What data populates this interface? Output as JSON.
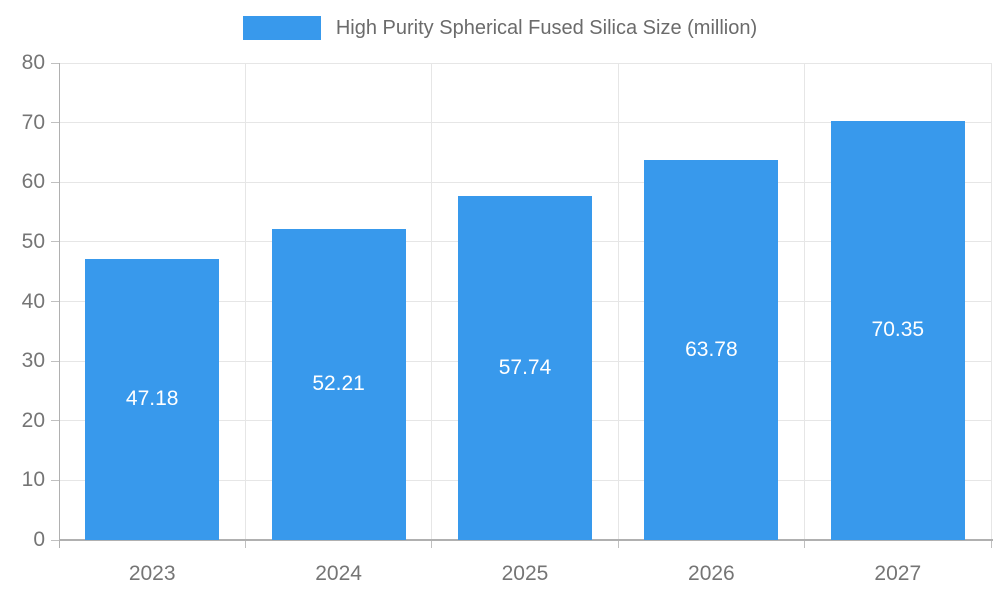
{
  "chart_data": {
    "type": "bar",
    "title": "High Purity Spherical Fused Silica Size (million)",
    "categories": [
      "2023",
      "2024",
      "2025",
      "2026",
      "2027"
    ],
    "values": [
      47.18,
      52.21,
      57.74,
      63.78,
      70.35
    ],
    "value_labels": [
      "47.18",
      "52.21",
      "57.74",
      "63.78",
      "70.35"
    ],
    "xlabel": "",
    "ylabel": "",
    "ylim": [
      0,
      80
    ],
    "yticks": [
      0,
      10,
      20,
      30,
      40,
      50,
      60,
      70,
      80
    ],
    "grid": true,
    "legend_position": "top",
    "colors": {
      "bar": "#3899ec",
      "grid": "#e6e6e6",
      "axis_line": "#b0b0b0",
      "tick": "#c0c0c0",
      "axis_text": "#757575",
      "legend_text": "#6b6b6b",
      "bar_label": "#ffffff"
    }
  },
  "legend": {
    "label": "High Purity Spherical Fused Silica Size (million)"
  }
}
